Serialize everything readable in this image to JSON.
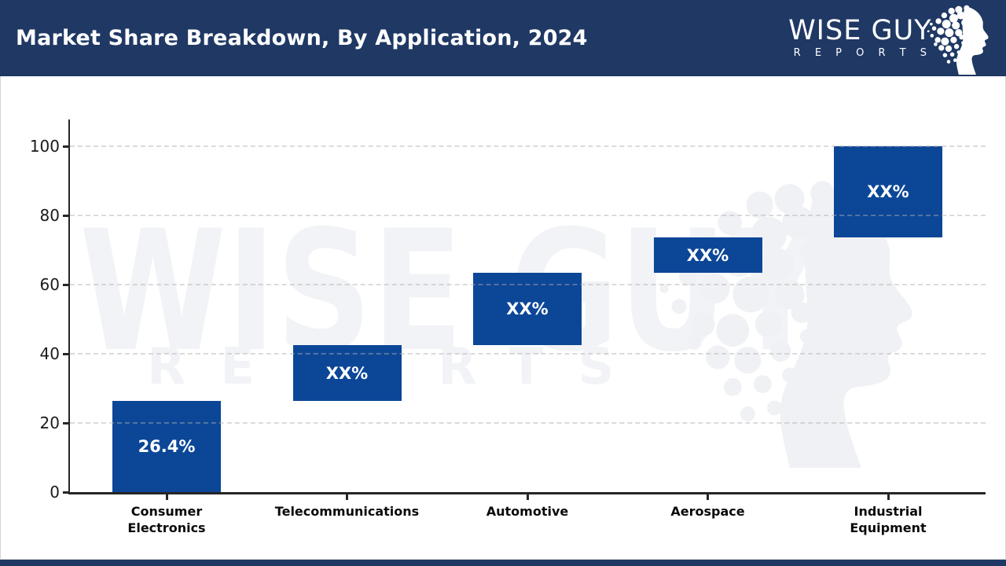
{
  "header": {
    "title": "Market Share Breakdown, By Application, 2024",
    "background_color": "#1f3864",
    "logo": {
      "line1": "WISE GUY",
      "line2": "R E P O R T S"
    }
  },
  "watermark": {
    "line1": "WISE GUY",
    "line2": "REPORTS"
  },
  "chart_data": {
    "type": "bar",
    "subtype": "waterfall-floating-bars",
    "title": "Market Share Breakdown, By Application, 2024",
    "categories": [
      "Consumer\nElectronics",
      "Telecommunications",
      "Automotive",
      "Aerospace",
      "Industrial\nEquipment"
    ],
    "segments": [
      {
        "category": "Consumer Electronics",
        "start": 0,
        "end": 26.4,
        "value_label": "26.4%"
      },
      {
        "category": "Telecommunications",
        "start": 26.4,
        "end": 42.4,
        "value_label": "XX%"
      },
      {
        "category": "Automotive",
        "start": 42.4,
        "end": 63.3,
        "value_label": "XX%"
      },
      {
        "category": "Aerospace",
        "start": 63.3,
        "end": 73.7,
        "value_label": "XX%"
      },
      {
        "category": "Industrial Equipment",
        "start": 73.7,
        "end": 100,
        "value_label": "XX%"
      }
    ],
    "y_ticks": [
      0,
      20,
      40,
      60,
      80,
      100
    ],
    "ylim": [
      0,
      104
    ],
    "xlabel": "",
    "ylabel": "",
    "grid": true,
    "grid_style": "dashed",
    "legend": false,
    "bar_color": "#0c4697",
    "axis_color": "#262626",
    "value_label_color": "#ffffff"
  }
}
